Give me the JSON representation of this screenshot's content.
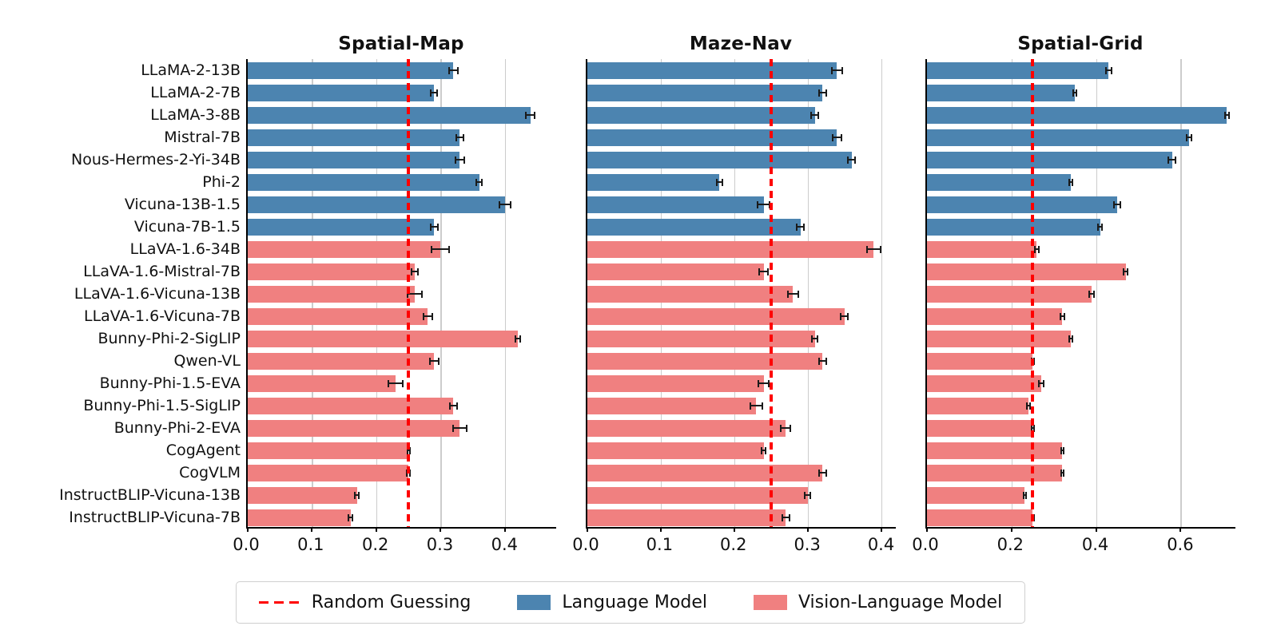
{
  "colors": {
    "language_model": "#4C84B0",
    "vision_language_model": "#F08080",
    "random_guessing_line": "#FF0000",
    "gridline": "#CCCCCC",
    "axis": "#000000"
  },
  "legend": {
    "random": "Random Guessing",
    "lm": "Language Model",
    "vlm": "Vision-Language Model"
  },
  "models": [
    {
      "name": "LLaMA-2-13B",
      "group": "lm"
    },
    {
      "name": "LLaMA-2-7B",
      "group": "lm"
    },
    {
      "name": "LLaMA-3-8B",
      "group": "lm"
    },
    {
      "name": "Mistral-7B",
      "group": "lm"
    },
    {
      "name": "Nous-Hermes-2-Yi-34B",
      "group": "lm"
    },
    {
      "name": "Phi-2",
      "group": "lm"
    },
    {
      "name": "Vicuna-13B-1.5",
      "group": "lm"
    },
    {
      "name": "Vicuna-7B-1.5",
      "group": "lm"
    },
    {
      "name": "LLaVA-1.6-34B",
      "group": "vlm"
    },
    {
      "name": "LLaVA-1.6-Mistral-7B",
      "group": "vlm"
    },
    {
      "name": "LLaVA-1.6-Vicuna-13B",
      "group": "vlm"
    },
    {
      "name": "LLaVA-1.6-Vicuna-7B",
      "group": "vlm"
    },
    {
      "name": "Bunny-Phi-2-SigLIP",
      "group": "vlm"
    },
    {
      "name": "Qwen-VL",
      "group": "vlm"
    },
    {
      "name": "Bunny-Phi-1.5-EVA",
      "group": "vlm"
    },
    {
      "name": "Bunny-Phi-1.5-SigLIP",
      "group": "vlm"
    },
    {
      "name": "Bunny-Phi-2-EVA",
      "group": "vlm"
    },
    {
      "name": "CogAgent",
      "group": "vlm"
    },
    {
      "name": "CogVLM",
      "group": "vlm"
    },
    {
      "name": "InstructBLIP-Vicuna-13B",
      "group": "vlm"
    },
    {
      "name": "InstructBLIP-Vicuna-7B",
      "group": "vlm"
    }
  ],
  "chart_data": [
    {
      "type": "bar",
      "orientation": "horizontal",
      "title": "Spatial-Map",
      "xlim": [
        0,
        0.48
      ],
      "xticks": [
        0.0,
        0.1,
        0.2,
        0.3,
        0.4
      ],
      "random_guessing": 0.25,
      "grid": true,
      "categories": [
        "LLaMA-2-13B",
        "LLaMA-2-7B",
        "LLaMA-3-8B",
        "Mistral-7B",
        "Nous-Hermes-2-Yi-34B",
        "Phi-2",
        "Vicuna-13B-1.5",
        "Vicuna-7B-1.5",
        "LLaVA-1.6-34B",
        "LLaVA-1.6-Mistral-7B",
        "LLaVA-1.6-Vicuna-13B",
        "LLaVA-1.6-Vicuna-7B",
        "Bunny-Phi-2-SigLIP",
        "Qwen-VL",
        "Bunny-Phi-1.5-EVA",
        "Bunny-Phi-1.5-SigLIP",
        "Bunny-Phi-2-EVA",
        "CogAgent",
        "CogVLM",
        "InstructBLIP-Vicuna-13B",
        "InstructBLIP-Vicuna-7B"
      ],
      "values": [
        0.32,
        0.29,
        0.44,
        0.33,
        0.33,
        0.36,
        0.4,
        0.29,
        0.3,
        0.26,
        0.26,
        0.28,
        0.42,
        0.29,
        0.23,
        0.32,
        0.33,
        0.25,
        0.25,
        0.17,
        0.16
      ],
      "errors": [
        0.008,
        0.006,
        0.008,
        0.007,
        0.008,
        0.005,
        0.01,
        0.007,
        0.015,
        0.006,
        0.012,
        0.008,
        0.005,
        0.008,
        0.013,
        0.007,
        0.012,
        0.003,
        0.004,
        0.004,
        0.004
      ]
    },
    {
      "type": "bar",
      "orientation": "horizontal",
      "title": "Maze-Nav",
      "xlim": [
        0,
        0.42
      ],
      "xticks": [
        0.0,
        0.1,
        0.2,
        0.3,
        0.4
      ],
      "random_guessing": 0.25,
      "grid": true,
      "categories": [
        "LLaMA-2-13B",
        "LLaMA-2-7B",
        "LLaMA-3-8B",
        "Mistral-7B",
        "Nous-Hermes-2-Yi-34B",
        "Phi-2",
        "Vicuna-13B-1.5",
        "Vicuna-7B-1.5",
        "LLaVA-1.6-34B",
        "LLaVA-1.6-Mistral-7B",
        "LLaVA-1.6-Vicuna-13B",
        "LLaVA-1.6-Vicuna-7B",
        "Bunny-Phi-2-SigLIP",
        "Qwen-VL",
        "Bunny-Phi-1.5-EVA",
        "Bunny-Phi-1.5-SigLIP",
        "Bunny-Phi-2-EVA",
        "CogAgent",
        "CogVLM",
        "InstructBLIP-Vicuna-13B",
        "InstructBLIP-Vicuna-7B"
      ],
      "values": [
        0.34,
        0.32,
        0.31,
        0.34,
        0.36,
        0.18,
        0.24,
        0.29,
        0.39,
        0.24,
        0.28,
        0.35,
        0.31,
        0.32,
        0.24,
        0.23,
        0.27,
        0.24,
        0.32,
        0.3,
        0.27
      ],
      "errors": [
        0.008,
        0.006,
        0.006,
        0.007,
        0.006,
        0.005,
        0.009,
        0.006,
        0.01,
        0.007,
        0.008,
        0.006,
        0.005,
        0.006,
        0.008,
        0.009,
        0.008,
        0.004,
        0.006,
        0.005,
        0.006
      ]
    },
    {
      "type": "bar",
      "orientation": "horizontal",
      "title": "Spatial-Grid",
      "xlim": [
        0,
        0.73
      ],
      "xticks": [
        0.0,
        0.2,
        0.4,
        0.6
      ],
      "random_guessing": 0.25,
      "grid": true,
      "categories": [
        "LLaMA-2-13B",
        "LLaMA-2-7B",
        "LLaMA-3-8B",
        "Mistral-7B",
        "Nous-Hermes-2-Yi-34B",
        "Phi-2",
        "Vicuna-13B-1.5",
        "Vicuna-7B-1.5",
        "LLaVA-1.6-34B",
        "LLaVA-1.6-Mistral-7B",
        "LLaVA-1.6-Vicuna-13B",
        "LLaVA-1.6-Vicuna-7B",
        "Bunny-Phi-2-SigLIP",
        "Qwen-VL",
        "Bunny-Phi-1.5-EVA",
        "Bunny-Phi-1.5-SigLIP",
        "Bunny-Phi-2-EVA",
        "CogAgent",
        "CogVLM",
        "InstructBLIP-Vicuna-13B",
        "InstructBLIP-Vicuna-7B"
      ],
      "values": [
        0.43,
        0.35,
        0.71,
        0.62,
        0.58,
        0.34,
        0.45,
        0.41,
        0.26,
        0.47,
        0.39,
        0.32,
        0.34,
        0.25,
        0.27,
        0.24,
        0.25,
        0.32,
        0.32,
        0.23,
        0.25
      ],
      "errors": [
        0.008,
        0.006,
        0.006,
        0.008,
        0.01,
        0.006,
        0.01,
        0.007,
        0.006,
        0.006,
        0.008,
        0.007,
        0.006,
        0.005,
        0.008,
        0.006,
        0.004,
        0.004,
        0.005,
        0.004,
        0.004
      ]
    }
  ]
}
